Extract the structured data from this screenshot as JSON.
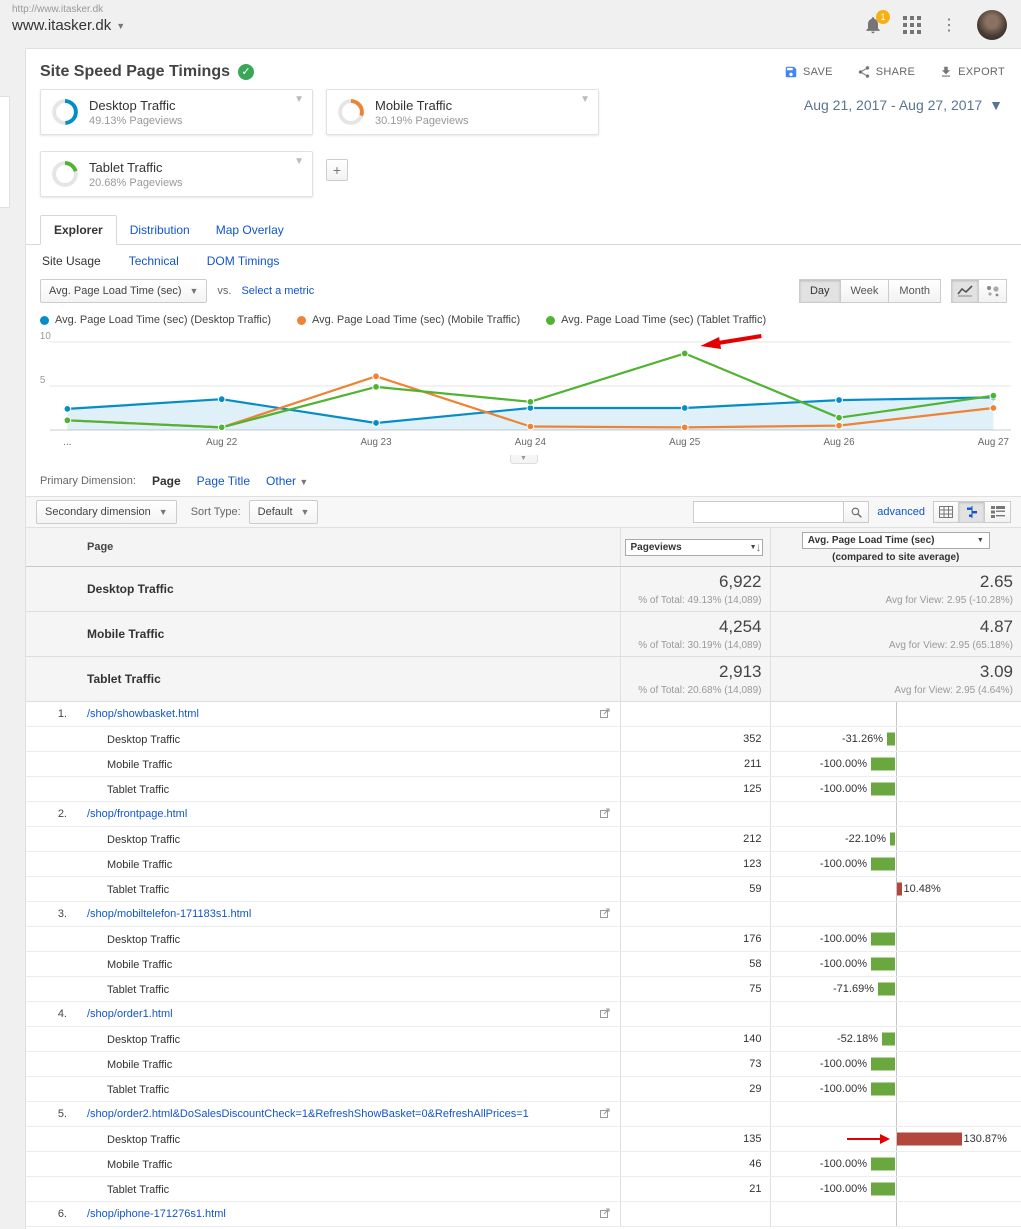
{
  "topbar": {
    "url": "http://www.itasker.dk",
    "account": "www.itasker.dk",
    "notification_count": "1"
  },
  "header": {
    "title": "Site Speed Page Timings",
    "actions": {
      "save": "SAVE",
      "share": "SHARE",
      "export": "EXPORT"
    },
    "date_range": "Aug 21, 2017 - Aug 27, 2017"
  },
  "segments": [
    {
      "name": "Desktop Traffic",
      "subtitle": "49.13% Pageviews",
      "color": "#058dc7",
      "fraction": 0.4913
    },
    {
      "name": "Mobile Traffic",
      "subtitle": "30.19% Pageviews",
      "color": "#ed8435",
      "fraction": 0.3019
    },
    {
      "name": "Tablet Traffic",
      "subtitle": "20.68% Pageviews",
      "color": "#50b432",
      "fraction": 0.2068
    }
  ],
  "add_segment": "+",
  "tabs": [
    "Explorer",
    "Distribution",
    "Map Overlay"
  ],
  "subnav": [
    "Site Usage",
    "Technical",
    "DOM Timings"
  ],
  "metric_bar": {
    "metric_select": "Avg. Page Load Time (sec)",
    "vs_label": "vs.",
    "select_metric": "Select a metric",
    "granularity": [
      "Day",
      "Week",
      "Month"
    ]
  },
  "chart_data": {
    "type": "line",
    "title": "Avg. Page Load Time (sec) by day",
    "x": [
      "...",
      "Aug 22",
      "Aug 23",
      "Aug 24",
      "Aug 25",
      "Aug 26",
      "Aug 27"
    ],
    "series": [
      {
        "name": "Avg. Page Load Time (sec) (Desktop Traffic)",
        "color": "#058dc7",
        "area": true,
        "values": [
          2.4,
          3.5,
          0.8,
          2.5,
          2.5,
          3.4,
          3.7
        ]
      },
      {
        "name": "Avg. Page Load Time (sec) (Mobile Traffic)",
        "color": "#ed8435",
        "area": false,
        "values": [
          1.1,
          0.3,
          6.1,
          0.4,
          0.3,
          0.5,
          2.5
        ]
      },
      {
        "name": "Avg. Page Load Time (sec) (Tablet Traffic)",
        "color": "#50b432",
        "area": false,
        "values": [
          1.1,
          0.3,
          4.9,
          3.2,
          8.7,
          1.4,
          3.9
        ]
      }
    ],
    "ylim": [
      0,
      10
    ],
    "yticks": [
      5,
      10
    ],
    "grid": true,
    "legend_position": "top",
    "annotation": "red arrow pointing at Tablet Traffic peak on Aug 25"
  },
  "primary_dimension": {
    "label": "Primary Dimension:",
    "options": [
      "Page",
      "Page Title",
      "Other"
    ]
  },
  "table_toolbar": {
    "secondary": "Secondary dimension",
    "sort_type_label": "Sort Type:",
    "sort_default": "Default",
    "advanced": "advanced",
    "search_value": ""
  },
  "table": {
    "columns": {
      "page": "Page",
      "pageviews": "Pageviews",
      "metric": "Avg. Page Load Time (sec)",
      "metric_sub": "(compared to site average)"
    },
    "summary": [
      {
        "name": "Desktop Traffic",
        "pageviews": "6,922",
        "pageviews_sub": "% of Total: 49.13% (14,089)",
        "metric": "2.65",
        "metric_sub": "Avg for View: 2.95 (-10.28%)"
      },
      {
        "name": "Mobile Traffic",
        "pageviews": "4,254",
        "pageviews_sub": "% of Total: 30.19% (14,089)",
        "metric": "4.87",
        "metric_sub": "Avg for View: 2.95 (65.18%)"
      },
      {
        "name": "Tablet Traffic",
        "pageviews": "2,913",
        "pageviews_sub": "% of Total: 20.68% (14,089)",
        "metric": "3.09",
        "metric_sub": "Avg for View: 2.95 (4.64%)"
      }
    ],
    "rows": [
      {
        "index": "1.",
        "page": "/shop/showbasket.html",
        "segments": [
          {
            "name": "Desktop Traffic",
            "pageviews": "352",
            "delta": -31.26,
            "delta_label": "-31.26%"
          },
          {
            "name": "Mobile Traffic",
            "pageviews": "211",
            "delta": -100,
            "delta_label": "-100.00%"
          },
          {
            "name": "Tablet Traffic",
            "pageviews": "125",
            "delta": -100,
            "delta_label": "-100.00%"
          }
        ]
      },
      {
        "index": "2.",
        "page": "/shop/frontpage.html",
        "segments": [
          {
            "name": "Desktop Traffic",
            "pageviews": "212",
            "delta": -22.1,
            "delta_label": "-22.10%"
          },
          {
            "name": "Mobile Traffic",
            "pageviews": "123",
            "delta": -100,
            "delta_label": "-100.00%"
          },
          {
            "name": "Tablet Traffic",
            "pageviews": "59",
            "delta": 10.48,
            "delta_label": "10.48%"
          }
        ]
      },
      {
        "index": "3.",
        "page": "/shop/mobiltelefon-171183s1.html",
        "segments": [
          {
            "name": "Desktop Traffic",
            "pageviews": "176",
            "delta": -100,
            "delta_label": "-100.00%"
          },
          {
            "name": "Mobile Traffic",
            "pageviews": "58",
            "delta": -100,
            "delta_label": "-100.00%"
          },
          {
            "name": "Tablet Traffic",
            "pageviews": "75",
            "delta": -71.69,
            "delta_label": "-71.69%"
          }
        ]
      },
      {
        "index": "4.",
        "page": "/shop/order1.html",
        "segments": [
          {
            "name": "Desktop Traffic",
            "pageviews": "140",
            "delta": -52.18,
            "delta_label": "-52.18%"
          },
          {
            "name": "Mobile Traffic",
            "pageviews": "73",
            "delta": -100,
            "delta_label": "-100.00%"
          },
          {
            "name": "Tablet Traffic",
            "pageviews": "29",
            "delta": -100,
            "delta_label": "-100.00%"
          }
        ]
      },
      {
        "index": "5.",
        "page": "/shop/order2.html&DoSalesDiscountCheck=1&RefreshShowBasket=0&RefreshAllPrices=1",
        "segments": [
          {
            "name": "Desktop Traffic",
            "pageviews": "135",
            "delta": 130.87,
            "delta_label": "130.87%",
            "arrow": true
          },
          {
            "name": "Mobile Traffic",
            "pageviews": "46",
            "delta": -100,
            "delta_label": "-100.00%"
          },
          {
            "name": "Tablet Traffic",
            "pageviews": "21",
            "delta": -100,
            "delta_label": "-100.00%"
          }
        ]
      },
      {
        "index": "6.",
        "page": "/shop/iphone-171276s1.html",
        "segments": []
      }
    ]
  }
}
